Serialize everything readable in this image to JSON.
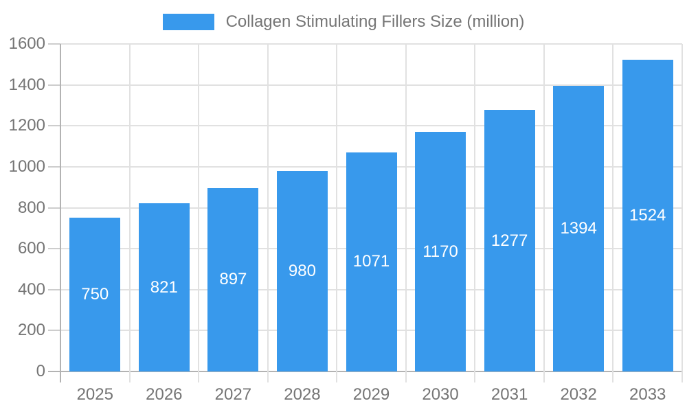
{
  "chart_data": {
    "type": "bar",
    "title": "",
    "legend": {
      "label": "Collagen Stimulating Fillers Size (million)",
      "position": "top"
    },
    "categories": [
      "2025",
      "2026",
      "2027",
      "2028",
      "2029",
      "2030",
      "2031",
      "2032",
      "2033"
    ],
    "values": [
      750,
      821,
      897,
      980,
      1071,
      1170,
      1277,
      1394,
      1524
    ],
    "xlabel": "",
    "ylabel": "",
    "ylim": [
      0,
      1600
    ],
    "yticks": [
      0,
      200,
      400,
      600,
      800,
      1000,
      1200,
      1400,
      1600
    ],
    "grid": true,
    "value_labels": "inside-center",
    "colors": {
      "bar": "#3899EC",
      "value_label": "#FFFFFF",
      "axis_text": "#757575",
      "grid_line": "#E1E1E1",
      "axis_line": "#B3B3B3",
      "tick": "#CDCDCD",
      "background": "#FFFFFF"
    }
  }
}
